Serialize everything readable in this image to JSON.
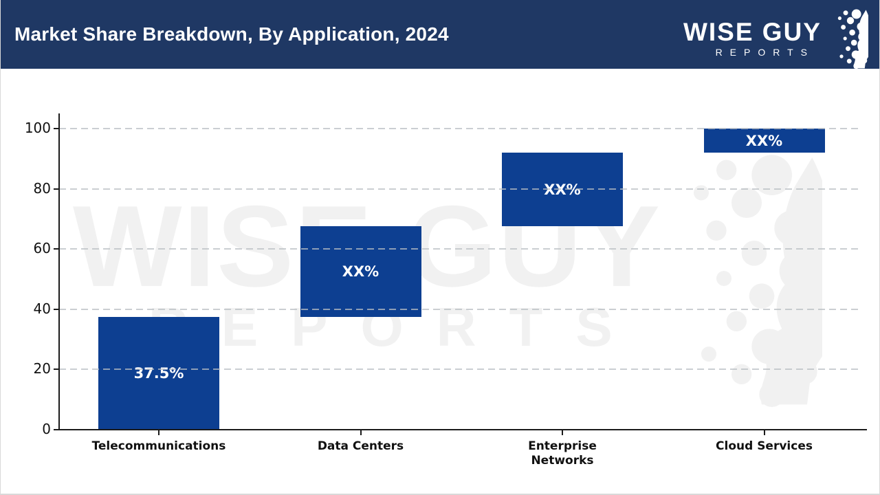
{
  "header": {
    "logo": {
      "line1": "WISE GUY",
      "line2": "REPORTS"
    }
  },
  "watermark": {
    "line1": "WISE GUY",
    "line2": "REPORTS"
  },
  "colors": {
    "header_bg": "#1f3864",
    "bar": "#0d3f91",
    "bar_label": "#ffffff",
    "axis": "#1a1a1a",
    "gridline": "#c5c9cd",
    "watermark": "#f1f1f1",
    "title_text": "#ffffff"
  },
  "chart_data": {
    "type": "bar",
    "subtype": "waterfall",
    "title": "Market Share Breakdown, By Application, 2024",
    "categories": [
      "Telecommunications",
      "Data Centers",
      "Enterprise\nNetworks",
      "Cloud Services"
    ],
    "segments": [
      {
        "start": 0,
        "end": 37.5,
        "label": "37.5%"
      },
      {
        "start": 37.5,
        "end": 67.5,
        "label": "XX%"
      },
      {
        "start": 67.5,
        "end": 92,
        "label": "XX%"
      },
      {
        "start": 92,
        "end": 100,
        "label": "XX%"
      }
    ],
    "increments": [
      37.5,
      30,
      24.5,
      8
    ],
    "displayed_labels": [
      "37.5%",
      "XX%",
      "XX%",
      "XX%"
    ],
    "yticks": [
      0,
      20,
      40,
      60,
      80,
      100
    ],
    "ylim": [
      0,
      105
    ],
    "xlabel": "",
    "ylabel": "",
    "grid": "dashed-horizontal",
    "legend": "none"
  }
}
